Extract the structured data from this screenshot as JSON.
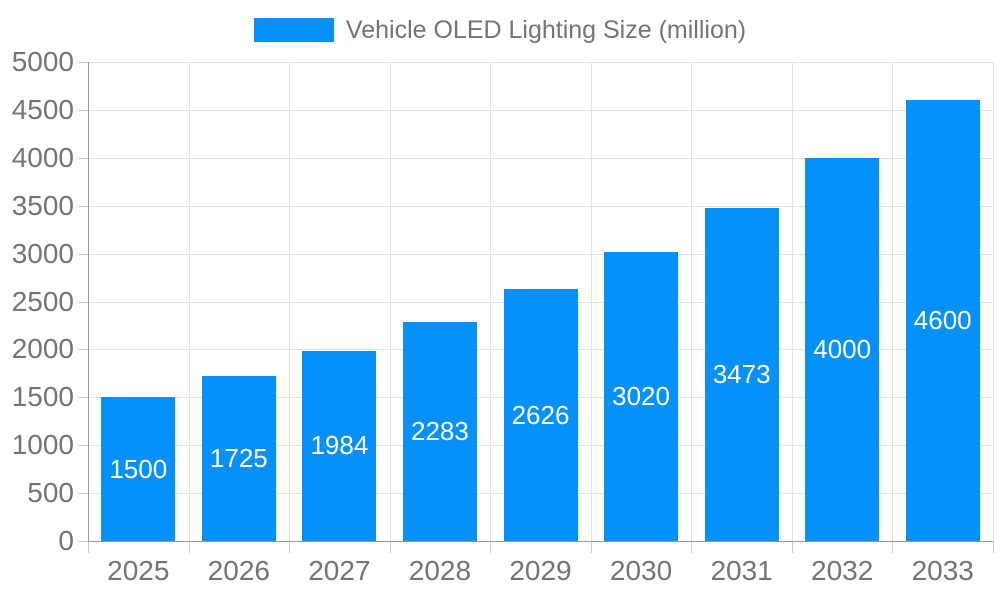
{
  "legend": {
    "label": "Vehicle OLED Lighting Size (million)"
  },
  "colors": {
    "bar": "#0690fa",
    "axis_text": "#757575",
    "grid_line": "#e3e3e3",
    "axis_line": "#999999",
    "tick": "#cccccc",
    "value_label": "#ffffff",
    "background": "#ffffff"
  },
  "chart_data": {
    "type": "bar",
    "title": "",
    "legend": [
      "Vehicle OLED Lighting Size (million)"
    ],
    "legend_position": "top-center",
    "categories": [
      "2025",
      "2026",
      "2027",
      "2028",
      "2029",
      "2030",
      "2031",
      "2032",
      "2033"
    ],
    "series": [
      {
        "name": "Vehicle OLED Lighting Size (million)",
        "values": [
          1500,
          1725,
          1984,
          2283,
          2626,
          3020,
          3473,
          4000,
          4600
        ]
      }
    ],
    "xlabel": "",
    "ylabel": "",
    "ylim": [
      0,
      5000
    ],
    "ytick_step": 500,
    "grid": true,
    "value_label_position": "inside-center"
  }
}
